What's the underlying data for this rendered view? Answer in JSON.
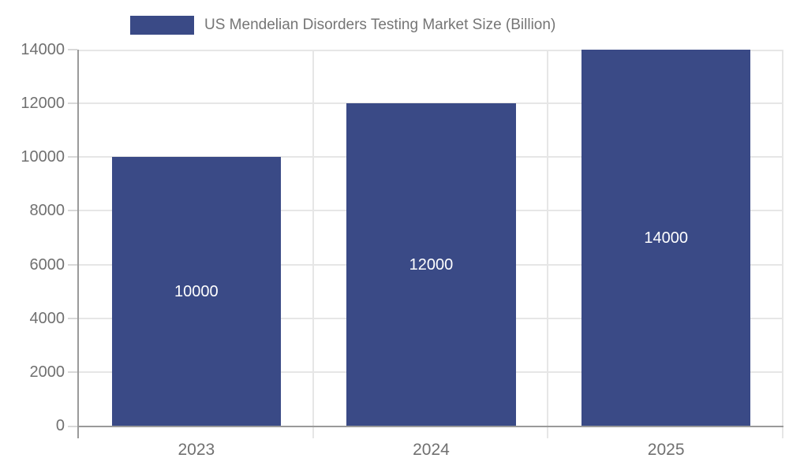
{
  "chart_data": {
    "type": "bar",
    "title": "US Mendelian Disorders Testing Market Size (Billion)",
    "categories": [
      "2023",
      "2024",
      "2025"
    ],
    "series": [
      {
        "name": "US Mendelian Disorders Testing Market Size (Billion)",
        "values": [
          10000,
          12000,
          14000
        ]
      }
    ],
    "data_labels": [
      "10000",
      "12000",
      "14000"
    ],
    "xlabel": "",
    "ylabel": "",
    "ylim": [
      0,
      14000
    ],
    "ytick_interval": 2000,
    "yticks": [
      0,
      2000,
      4000,
      6000,
      8000,
      10000,
      12000,
      14000
    ],
    "grid": true,
    "legend_position": "top-center",
    "colors": {
      "bar": "#3A4A86",
      "grid": "#E6E6E6",
      "axis": "#9A9A9A",
      "tick": "#D8D8D8",
      "axis_text": "#707070",
      "legend_text": "#757575",
      "data_label_text": "#FFFFFF",
      "background": "#FFFFFF"
    }
  }
}
